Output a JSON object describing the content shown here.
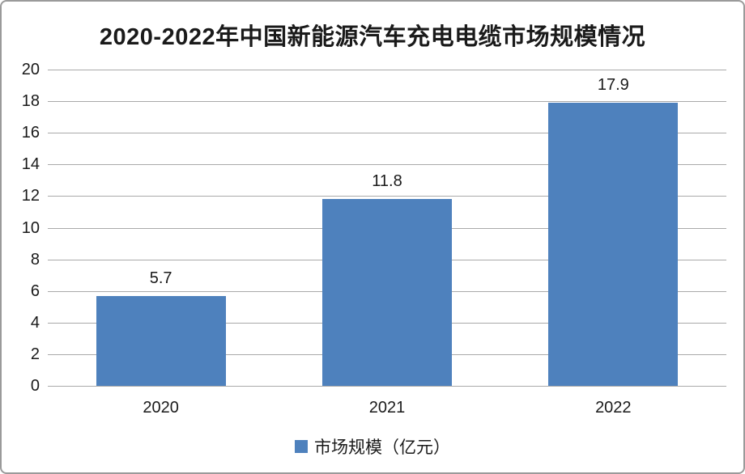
{
  "chart_data": {
    "type": "bar",
    "title": "2020-2022年中国新能源汽车充电电缆市场规模情况",
    "categories": [
      "2020",
      "2021",
      "2022"
    ],
    "series": [
      {
        "name": "市场规模（亿元）",
        "values": [
          5.7,
          11.8,
          17.9
        ]
      }
    ],
    "value_labels": [
      "5.7",
      "11.8",
      "17.9"
    ],
    "xlabel": "",
    "ylabel": "",
    "ylim": [
      0,
      20
    ],
    "yticks": [
      0,
      2,
      4,
      6,
      8,
      10,
      12,
      14,
      16,
      18,
      20
    ],
    "grid": true,
    "legend_position": "bottom",
    "colors": {
      "bar": "#4E81BD",
      "gridline": "#a9a9a9",
      "text": "#1a1a1a",
      "frame_border": "#9a9a9a"
    }
  },
  "legend": {
    "label": "市场规模（亿元）"
  }
}
